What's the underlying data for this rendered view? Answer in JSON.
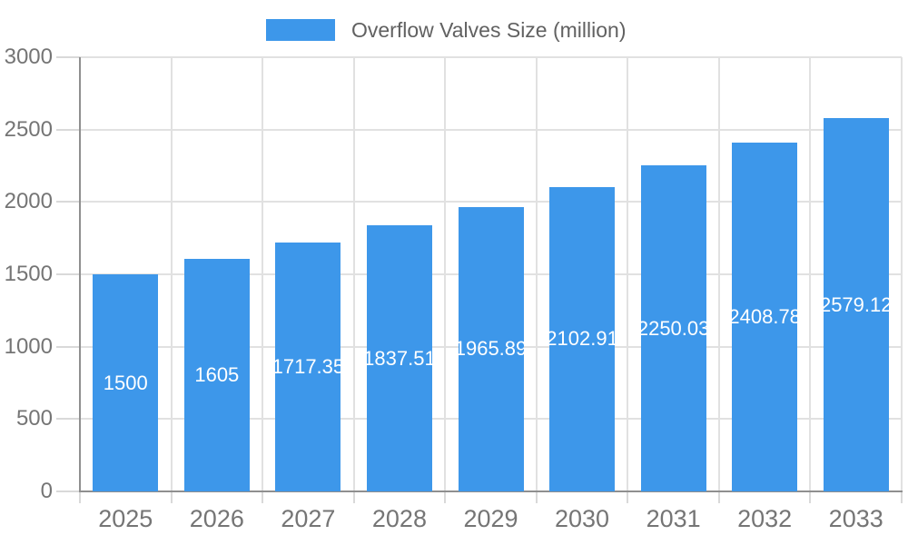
{
  "legend": {
    "label": "Overflow Valves Size (million)",
    "swatch_color": "#3d97ea",
    "text_color": "#616161"
  },
  "chart_data": {
    "type": "bar",
    "title": "Overflow Valves Size (million)",
    "categories": [
      "2025",
      "2026",
      "2027",
      "2028",
      "2029",
      "2030",
      "2031",
      "2032",
      "2033"
    ],
    "series": [
      {
        "name": "Overflow Valves Size (million)",
        "values": [
          1500,
          1605,
          1717.35,
          1837.51,
          1965.89,
          2102.91,
          2250.03,
          2408.78,
          2579.12
        ]
      }
    ],
    "bar_labels": [
      "1500",
      "1605",
      "1717.35",
      "1837.51",
      "1965.89",
      "2102.91",
      "2250.03",
      "2408.78",
      "2579.12"
    ],
    "xlabel": "",
    "ylabel": "",
    "ylim": [
      0,
      3000
    ],
    "ytick_step": 500,
    "ytick_labels": [
      "0",
      "500",
      "1000",
      "1500",
      "2000",
      "2500",
      "3000"
    ],
    "grid": true,
    "legend_position": "top-center",
    "colors": {
      "bar": "#3d97ea",
      "grid": "#e1e1e1",
      "tick": "#d9d9d9",
      "axis": "#8f8f8f",
      "axis_label": "#757575",
      "value_label": "#ffffff"
    }
  }
}
